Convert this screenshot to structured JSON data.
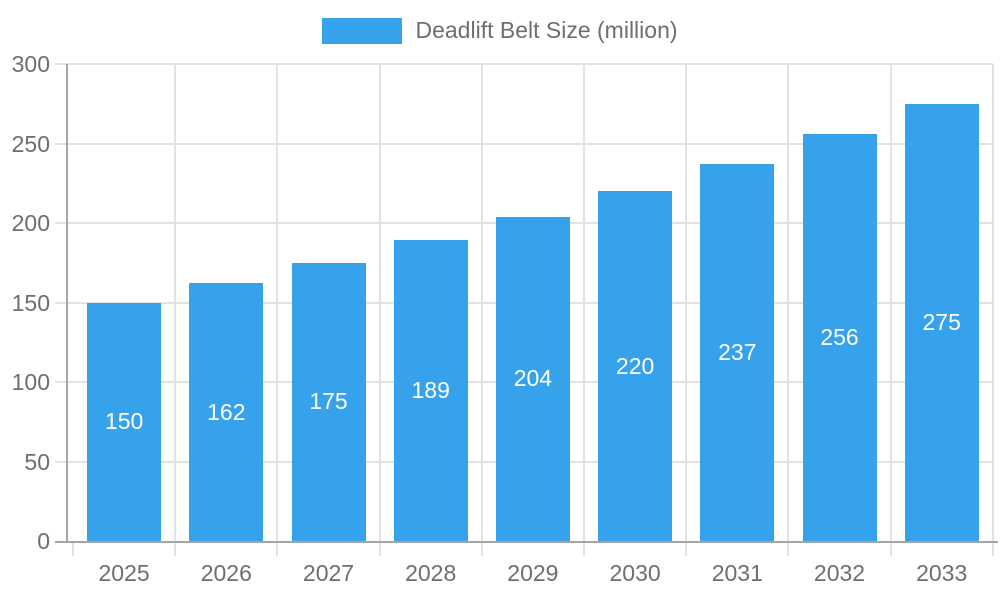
{
  "legend": {
    "position": "top-center",
    "items": [
      {
        "label": "Deadlift Belt Size (million)",
        "color": "#36a2eb"
      }
    ]
  },
  "chart_data": {
    "type": "bar",
    "title": "",
    "categories": [
      "2025",
      "2026",
      "2027",
      "2028",
      "2029",
      "2030",
      "2031",
      "2032",
      "2033"
    ],
    "series": [
      {
        "name": "Deadlift Belt Size (million)",
        "color": "#36a2eb",
        "values": [
          150,
          162,
          175,
          189,
          204,
          220,
          237,
          256,
          275
        ]
      }
    ],
    "xlabel": "",
    "ylabel": "",
    "ylim": [
      0,
      300
    ],
    "yticks": [
      0,
      50,
      100,
      150,
      200,
      250,
      300
    ],
    "grid": true,
    "legend_position": "top",
    "value_labels": "inside-center",
    "value_label_color": "#ffffff"
  },
  "colors": {
    "background": "#ffffff",
    "bar": "#36a2eb",
    "axis_line": "#a5a5a5",
    "grid_line": "#e2e2e2",
    "tick_label": "#6e6e6e",
    "legend_label": "#6e6e6e"
  }
}
